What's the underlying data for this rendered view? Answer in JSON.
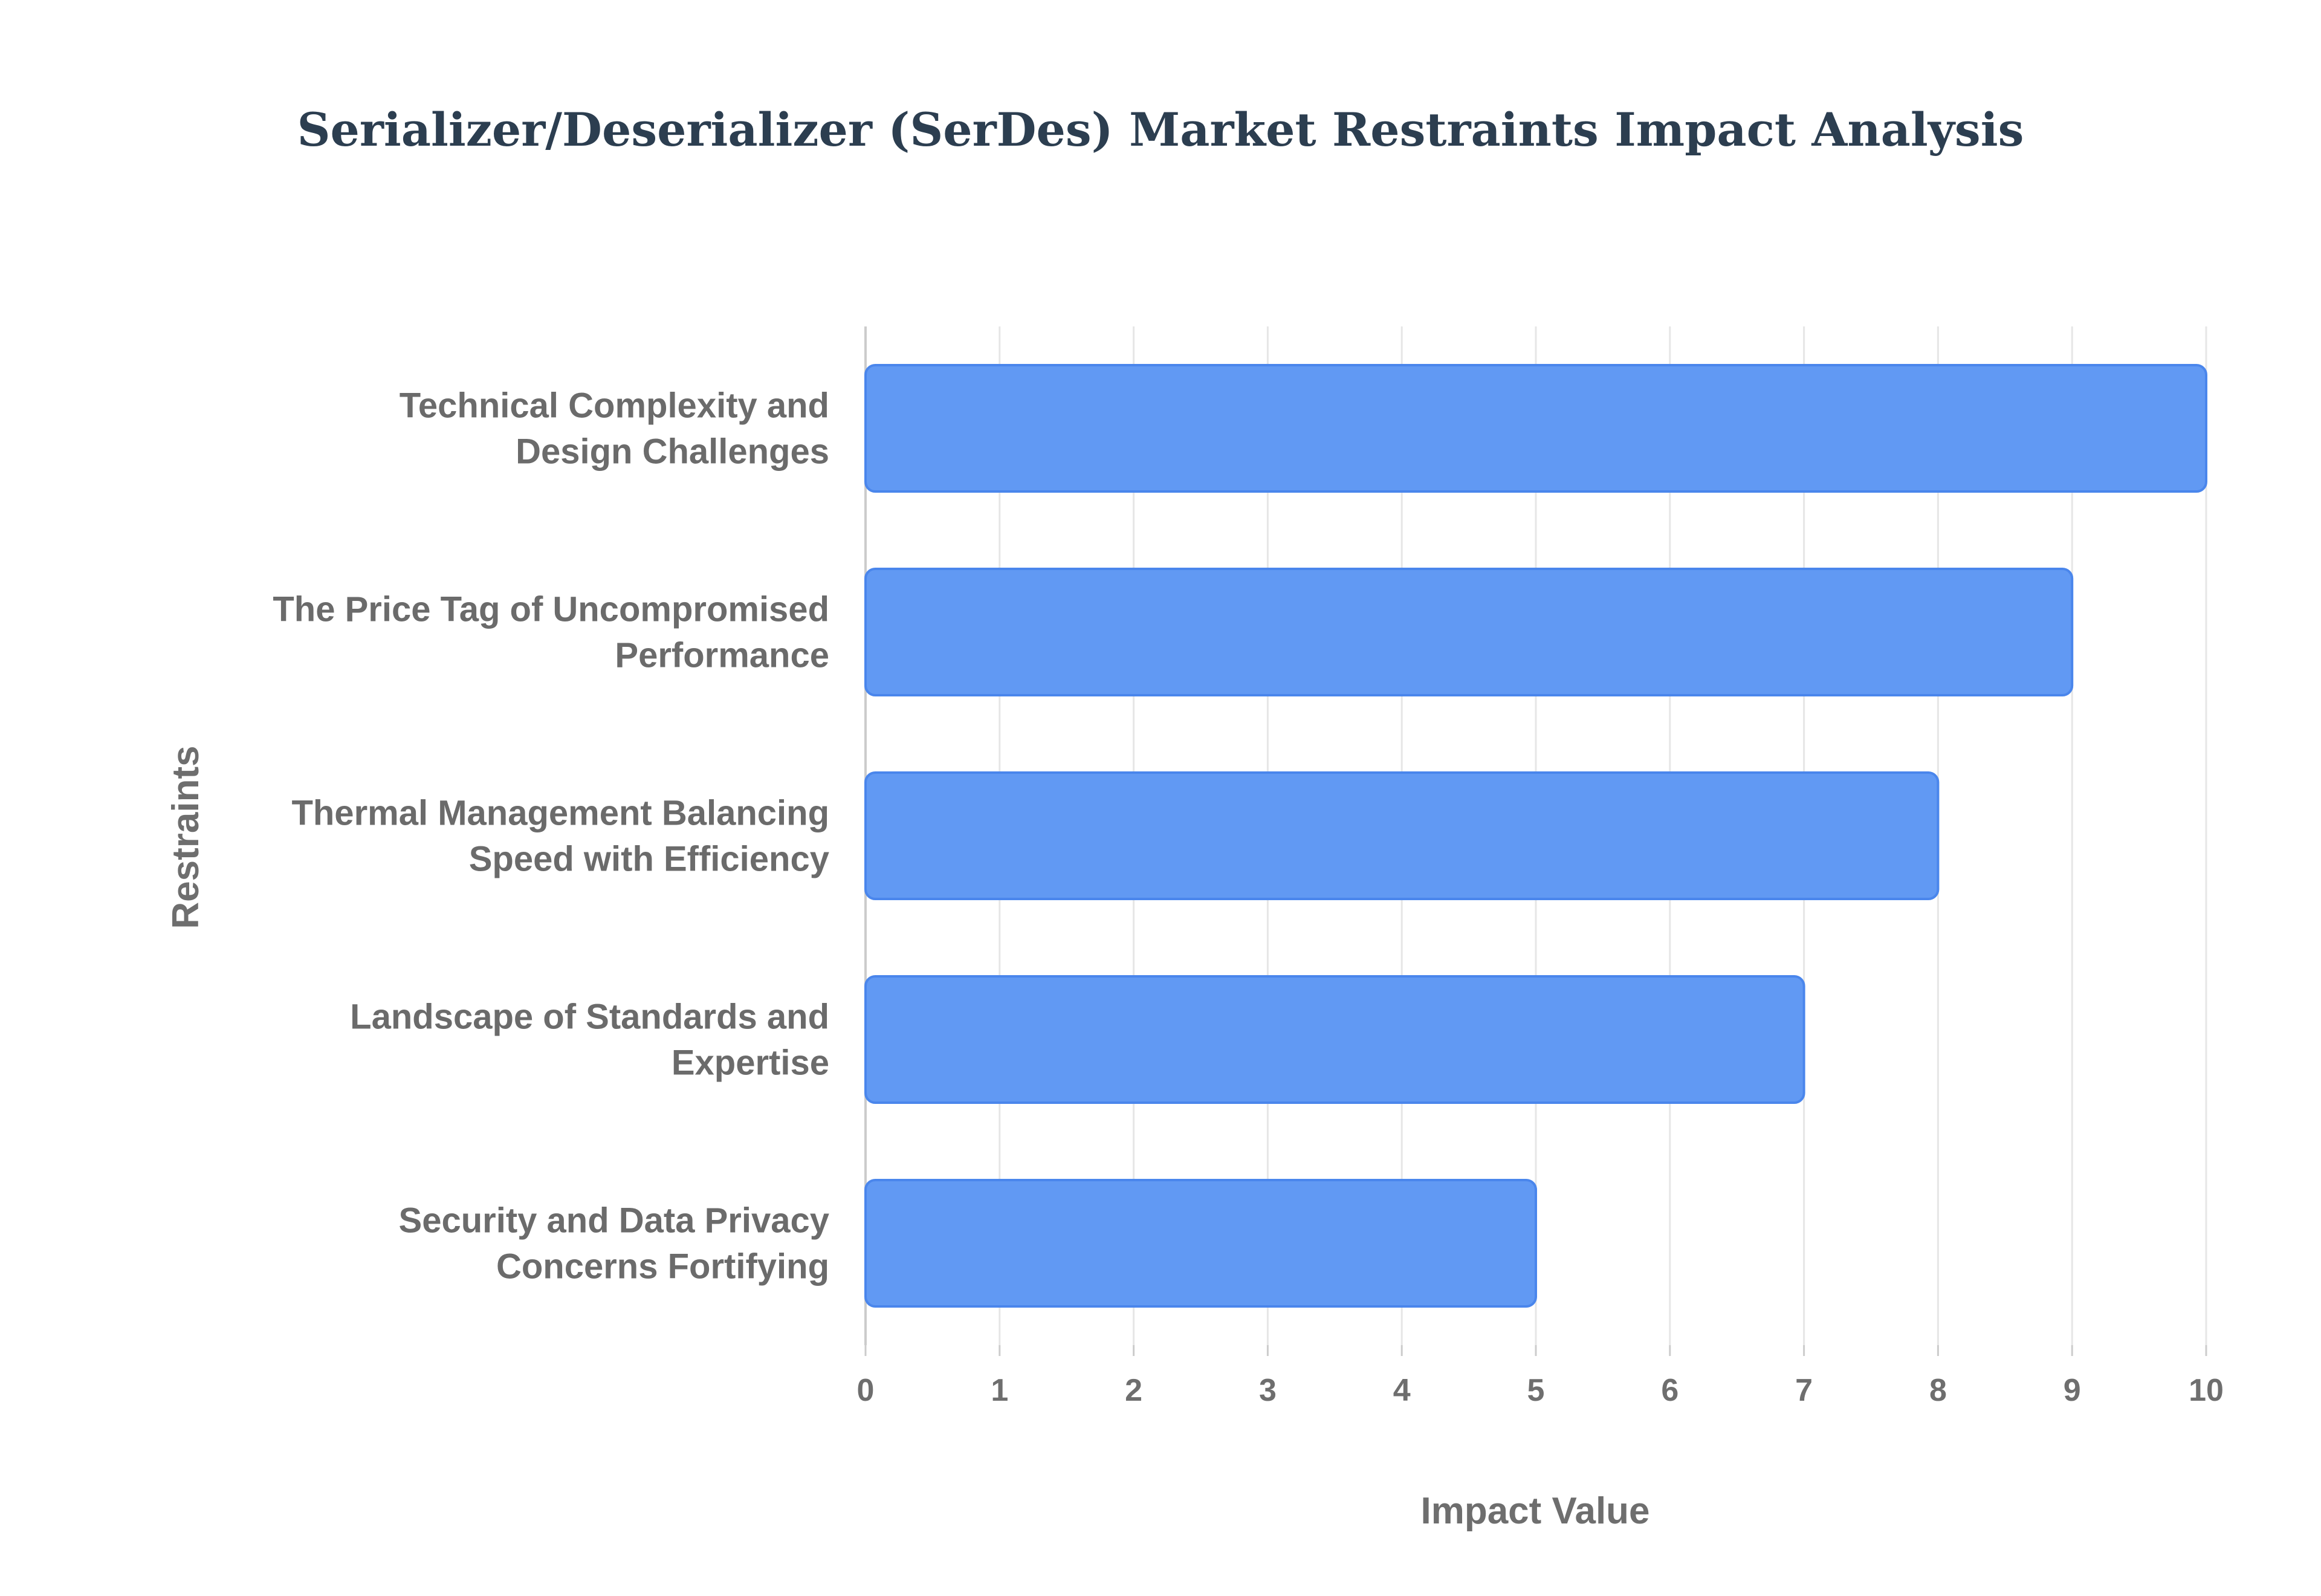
{
  "chart_data": {
    "type": "bar",
    "orientation": "horizontal",
    "title": "Serializer/Deserializer (SerDes) Market Restraints Impact Analysis",
    "xlabel": "Impact Value",
    "ylabel": "Restraints",
    "categories": [
      [
        "Technical Complexity and",
        "Design Challenges"
      ],
      [
        "The Price Tag of Uncompromised",
        "Performance"
      ],
      [
        "Thermal Management Balancing",
        "Speed with Efficiency"
      ],
      [
        "Landscape of Standards and",
        "Expertise"
      ],
      [
        "Security and Data Privacy",
        "Concerns Fortifying"
      ]
    ],
    "values": [
      10,
      9,
      8,
      7,
      5
    ],
    "xlim": [
      0,
      10
    ],
    "xticks": [
      "0",
      "1",
      "2",
      "3",
      "4",
      "5",
      "6",
      "7",
      "8",
      "9",
      "10"
    ],
    "grid": true,
    "legend": "none",
    "colors": {
      "bar_fill": "#6199f3",
      "bar_stroke": "#4a86ec",
      "grid": "#e6e6e6",
      "axis": "#cccccc",
      "title": "#2c3e50",
      "label": "#6b6b6b"
    }
  }
}
